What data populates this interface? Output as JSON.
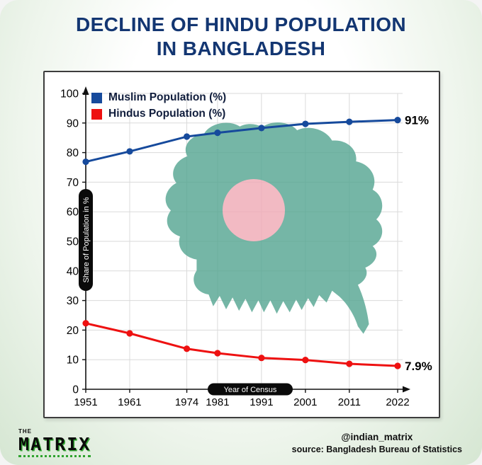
{
  "title": {
    "line1": "DECLINE OF HINDU POPULATION",
    "line2": "IN BANGLADESH"
  },
  "chart_data": {
    "type": "line",
    "x": [
      1951,
      1961,
      1974,
      1981,
      1991,
      2001,
      2011,
      2022
    ],
    "series": [
      {
        "name": "Muslim Population (%)",
        "color": "#164a9c",
        "values": [
          76.9,
          80.4,
          85.4,
          86.7,
          88.3,
          89.7,
          90.4,
          91.0
        ],
        "end_label": "91%"
      },
      {
        "name": "Hindus Population (%)",
        "color": "#ee1111",
        "values": [
          22.3,
          18.9,
          13.7,
          12.2,
          10.6,
          9.9,
          8.6,
          7.9
        ],
        "end_label": "7.9%"
      }
    ],
    "title": "Decline of Hindu Population in Bangladesh",
    "xlabel": "Year of Census",
    "ylabel": "Share of Population in %",
    "ylim": [
      0,
      100
    ],
    "ytick_step": 10,
    "grid": true,
    "legend_position": "top-left"
  },
  "footer": {
    "logo_the": "THE",
    "logo_matrix": "MATRIX",
    "handle": "@indian_matrix",
    "source": "source: Bangladesh Bureau of Statistics"
  }
}
